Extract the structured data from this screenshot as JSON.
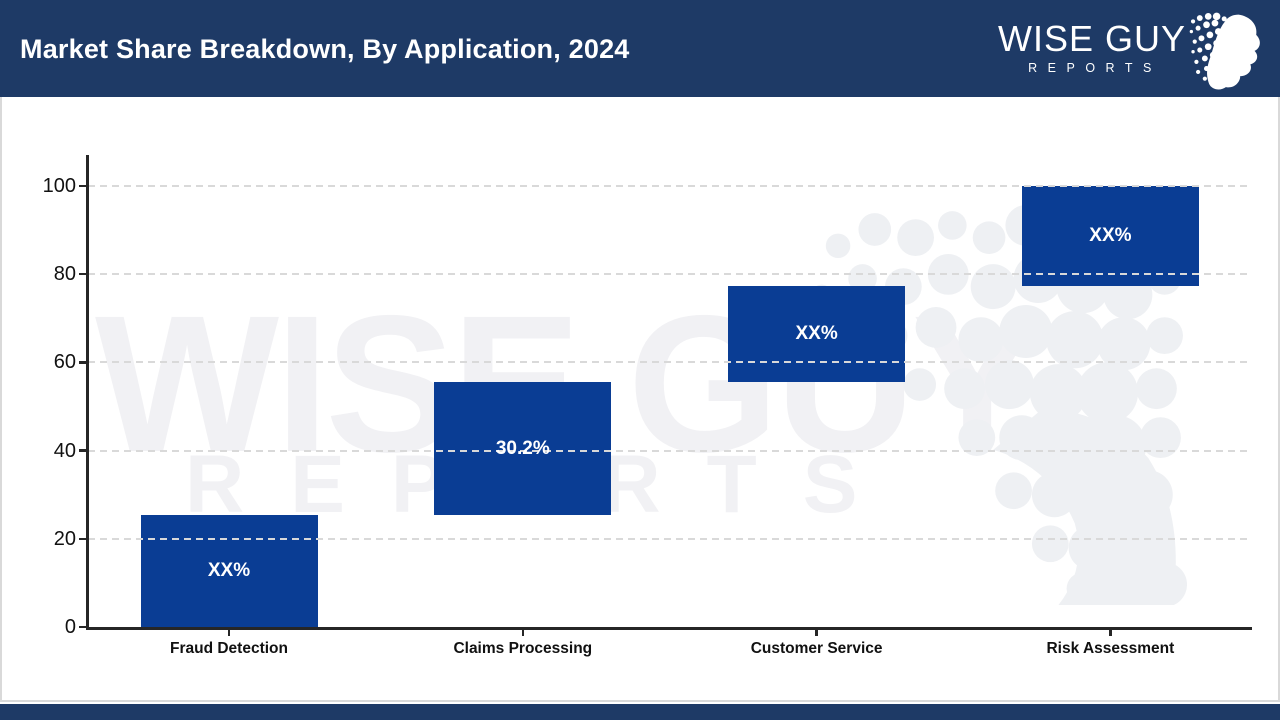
{
  "header": {
    "title": "Market Share Breakdown, By Application, 2024",
    "logo": {
      "line1": "WISE GUY",
      "line2": "REPORTS"
    }
  },
  "watermark": {
    "line1": "WISE GUY",
    "line2": "REPORTS"
  },
  "chart_data": {
    "type": "bar",
    "subtype": "floating-waterfall-segments",
    "title": "Market Share Breakdown, By Application, 2024",
    "xlabel": "",
    "ylabel": "",
    "ylim": [
      0,
      100
    ],
    "yticks": [
      0,
      20,
      40,
      60,
      80,
      100
    ],
    "grid": "horizontal-dashed-over-bars",
    "legend": "none",
    "bar_color": "#0a3d94",
    "label_color": "#ffffff",
    "categories": [
      "Fraud Detection",
      "Claims Processing",
      "Customer Service",
      "Risk Assessment"
    ],
    "bars": [
      {
        "category": "Fraud Detection",
        "start": 0,
        "end": 25.3,
        "label": "XX%"
      },
      {
        "category": "Claims Processing",
        "start": 25.3,
        "end": 55.5,
        "label": "30.2%"
      },
      {
        "category": "Customer Service",
        "start": 55.5,
        "end": 77.2,
        "label": "XX%"
      },
      {
        "category": "Risk Assessment",
        "start": 77.2,
        "end": 100,
        "label": "XX%"
      }
    ]
  },
  "colors": {
    "header_bg": "#1e3a66",
    "footer_bg": "#1e3a66",
    "bar": "#0a3d94",
    "bar_label": "#ffffff",
    "grid": "#d9d9d9",
    "axis": "#262626",
    "tick_text": "#111111",
    "watermark": "#f1f1f4",
    "panel_border": "#d9d9d9"
  }
}
